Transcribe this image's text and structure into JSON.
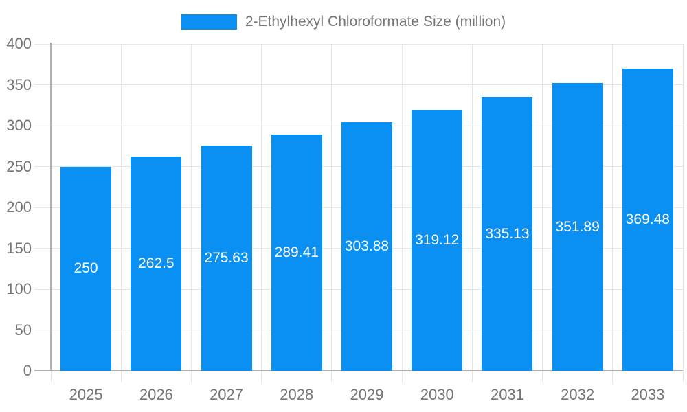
{
  "legend": {
    "label": "2-Ethylhexyl Chloroformate Size (million)"
  },
  "chart_data": {
    "type": "bar",
    "title": "2-Ethylhexyl Chloroformate Size (million)",
    "series_name": "2-Ethylhexyl Chloroformate Size (million)",
    "categories": [
      "2025",
      "2026",
      "2027",
      "2028",
      "2029",
      "2030",
      "2031",
      "2032",
      "2033"
    ],
    "values": [
      250,
      262.5,
      275.63,
      289.41,
      303.88,
      319.12,
      335.13,
      351.89,
      369.48
    ],
    "bar_labels": [
      "250",
      "262.5",
      "275.63",
      "289.41",
      "303.88",
      "319.12",
      "335.13",
      "351.89",
      "369.48"
    ],
    "xlabel": "",
    "ylabel": "",
    "ylim": [
      0,
      400
    ],
    "yticks": [
      0,
      50,
      100,
      150,
      200,
      250,
      300,
      350,
      400
    ],
    "grid": true,
    "legend_position": "top",
    "bar_color": "#0a90f2",
    "bar_label_color": "#ffffff",
    "axis_text_color": "#757575",
    "grid_color": "#e6e6e6",
    "axis_line_color": "#b0b0b0"
  }
}
